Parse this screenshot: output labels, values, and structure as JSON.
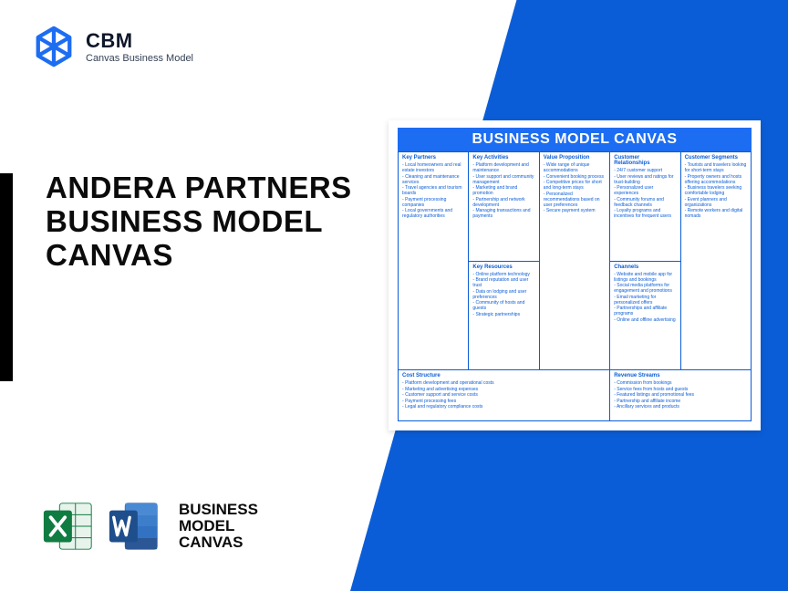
{
  "colors": {
    "brand_blue": "#0b5dd7",
    "accent_blue": "#1d6df2",
    "text_dark": "#0b0b0b",
    "excel_green": "#107c41",
    "excel_dark": "#0f6b38",
    "word_blue": "#2b5797",
    "word_light": "#4a8ad4"
  },
  "logo": {
    "brand": "CBM",
    "tagline": "Canvas Business Model"
  },
  "headline": "ANDERA PARTNERS BUSINESS MODEL CANVAS",
  "apps_label": "BUSINESS\nMODEL\nCANVAS",
  "canvas": {
    "title": "BUSINESS MODEL CANVAS",
    "sections": {
      "key_partners": {
        "heading": "Key Partners",
        "items": [
          "Local homeowners and real estate investors",
          "Cleaning and maintenance services",
          "Travel agencies and tourism boards",
          "Payment processing companies",
          "Local governments and regulatory authorities"
        ]
      },
      "key_activities": {
        "heading": "Key Activities",
        "items": [
          "Platform development and maintenance",
          "User support and community management",
          "Marketing and brand promotion",
          "Partnership and network development",
          "Managing transactions and payments"
        ]
      },
      "key_resources": {
        "heading": "Key Resources",
        "items": [
          "Online platform technology",
          "Brand reputation and user trust",
          "Data on lodging and user preferences",
          "Community of hosts and guests",
          "Strategic partnerships"
        ]
      },
      "value_proposition": {
        "heading": "Value Proposition",
        "items": [
          "Wide range of unique accommodations",
          "Convenient booking process",
          "Competitive prices for short and long-term stays",
          "Personalized recommendations based on user preferences",
          "Secure payment system"
        ]
      },
      "customer_relationships": {
        "heading": "Customer Relationships",
        "items": [
          "24/7 customer support",
          "User reviews and ratings for trust-building",
          "Personalized user experiences",
          "Community forums and feedback channels",
          "Loyalty programs and incentives for frequent users"
        ]
      },
      "channels": {
        "heading": "Channels",
        "items": [
          "Website and mobile app for listings and bookings",
          "Social media platforms for engagement and promotions",
          "Email marketing for personalized offers",
          "Partnerships and affiliate programs",
          "Online and offline advertising"
        ]
      },
      "customer_segments": {
        "heading": "Customer Segments",
        "items": [
          "Tourists and travelers looking for short-term stays",
          "Property owners and hosts offering accommodations",
          "Business travelers seeking comfortable lodging",
          "Event planners and organizations",
          "Remote workers and digital nomads"
        ]
      },
      "cost_structure": {
        "heading": "Cost Structure",
        "items": [
          "Platform development and operational costs",
          "Marketing and advertising expenses",
          "Customer support and service costs",
          "Payment processing fees",
          "Legal and regulatory compliance costs"
        ]
      },
      "revenue_streams": {
        "heading": "Revenue Streams",
        "items": [
          "Commission from bookings",
          "Service fees from hosts and guests",
          "Featured listings and promotional fees",
          "Partnership and affiliate income",
          "Ancillary services and products"
        ]
      }
    }
  }
}
